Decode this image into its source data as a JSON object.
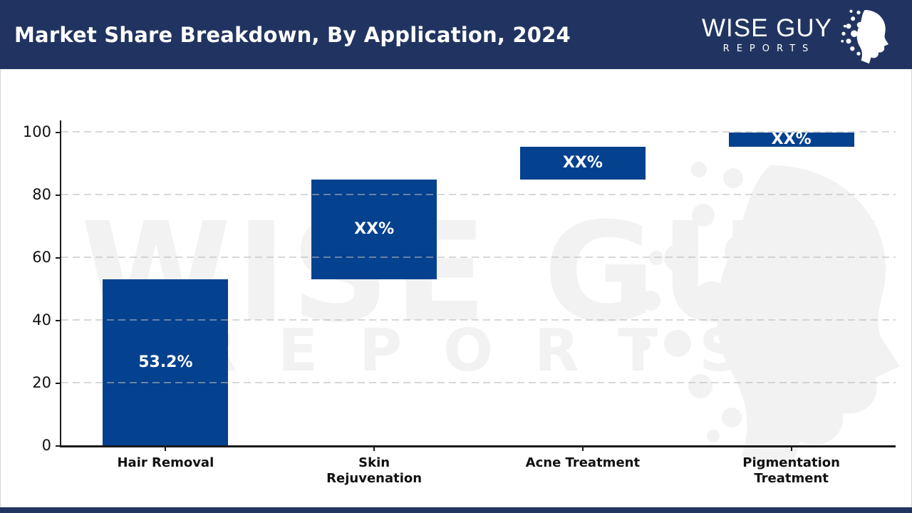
{
  "header": {
    "title": "Market Share Breakdown, By Application, 2024",
    "logo": {
      "line1": "WISE GUY",
      "line2": "REPORTS"
    }
  },
  "watermark": {
    "line1": "WISE GUY",
    "line2": "REPORTS"
  },
  "colors": {
    "header_bg": "#213461",
    "footer_bg": "#213461",
    "bar": "#04418f",
    "grid": "#c9c9c9",
    "axis": "#1a1a1a",
    "bar_label": "#ffffff",
    "tick_label": "#111111",
    "watermark": "#f2f2f2"
  },
  "chart_data": {
    "type": "bar",
    "subtype": "waterfall-segments",
    "title": "Market Share Breakdown, By Application, 2024",
    "categories": [
      "Hair Removal",
      "Skin Rejuvenation",
      "Acne Treatment",
      "Pigmentation Treatment"
    ],
    "segments": [
      {
        "category": "Hair Removal",
        "start": 0,
        "end": 53.2,
        "label": "53.2%"
      },
      {
        "category": "Skin Rejuvenation",
        "start": 53.2,
        "end": 85.0,
        "label": "XX%"
      },
      {
        "category": "Acne Treatment",
        "start": 85.0,
        "end": 95.5,
        "label": "XX%"
      },
      {
        "category": "Pigmentation Treatment",
        "start": 95.5,
        "end": 100.0,
        "label": "XX%"
      }
    ],
    "yticks": [
      0,
      20,
      40,
      60,
      80,
      100
    ],
    "ylim": [
      0,
      105
    ],
    "xlabel": "",
    "ylabel": "",
    "grid": "horizontal-dashed",
    "legend": "none"
  }
}
